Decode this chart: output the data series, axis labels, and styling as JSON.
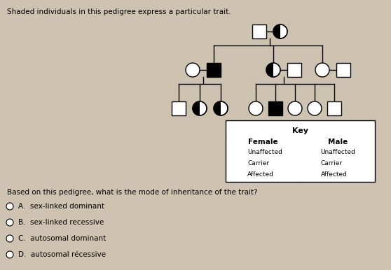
{
  "bg_color": "#cdc3b0",
  "title_text": "Shaded individuals in this pedigree express a particular trait.",
  "question_text": "Based on this pedigree, what is the mode of inheritance of the trait?",
  "options": [
    "A.  sex-linked dominant",
    "B.  sex-linked recessive",
    "C.  autosomal dominant",
    "D.  autosomal récessive"
  ],
  "key_title": "Key",
  "key_female_labels": [
    "Unaffected",
    "Carrier",
    "Affected"
  ],
  "key_male_labels": [
    "Unaffected",
    "Carrier",
    "Affected"
  ]
}
